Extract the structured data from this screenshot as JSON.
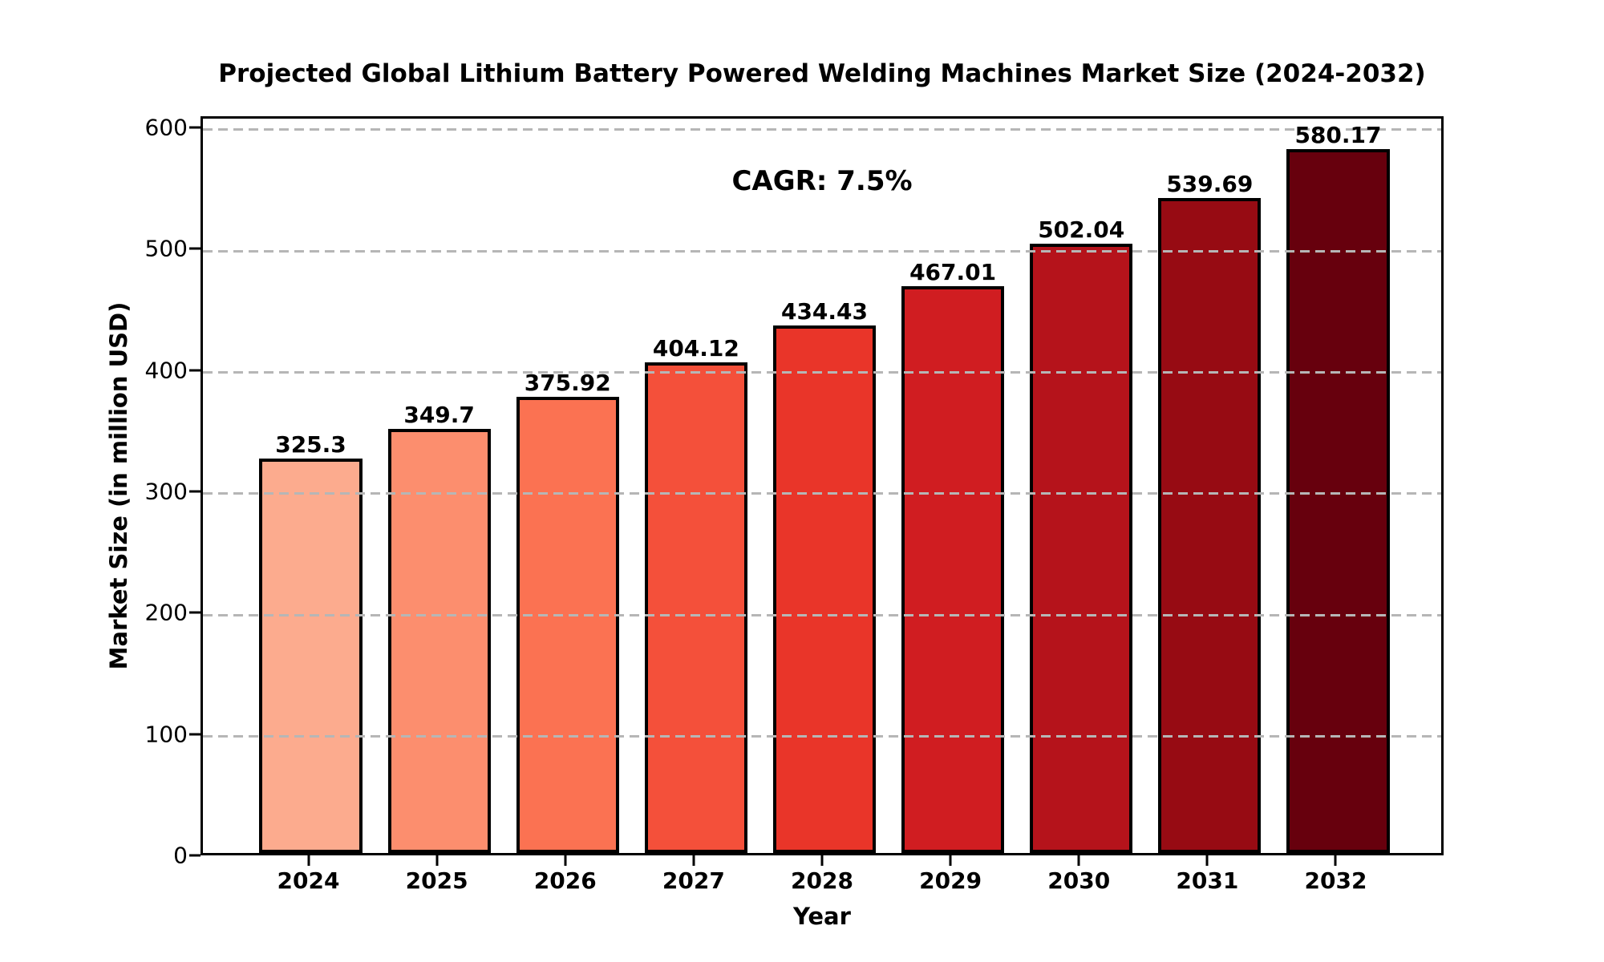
{
  "chart_data": {
    "type": "bar",
    "title": "Projected Global Lithium Battery Powered Welding Machines Market Size (2024-2032)",
    "xlabel": "Year",
    "ylabel": "Market Size (in million USD)",
    "annotation": "CAGR: 7.5%",
    "categories": [
      "2024",
      "2025",
      "2026",
      "2027",
      "2028",
      "2029",
      "2030",
      "2031",
      "2032"
    ],
    "values": [
      325.3,
      349.7,
      375.92,
      404.12,
      434.43,
      467.01,
      502.04,
      539.69,
      580.17
    ],
    "bar_labels": [
      "325.3",
      "349.7",
      "375.92",
      "404.12",
      "434.43",
      "467.01",
      "502.04",
      "539.69",
      "580.17"
    ],
    "bar_colors": [
      "#fcab8e",
      "#fc8e6e",
      "#fb7252",
      "#f4503a",
      "#e93529",
      "#d01d21",
      "#b5131b",
      "#970b13",
      "#67000d"
    ],
    "y_ticks": [
      0,
      100,
      200,
      300,
      400,
      500,
      600
    ],
    "ylim": [
      0,
      609
    ],
    "grid": "horizontal dashed, drawn above bars",
    "legend": "none",
    "bar_edge_color": "#000000",
    "grid_color": "#b6b6b6",
    "background_color": "#ffffff",
    "text_color": "#000000"
  }
}
